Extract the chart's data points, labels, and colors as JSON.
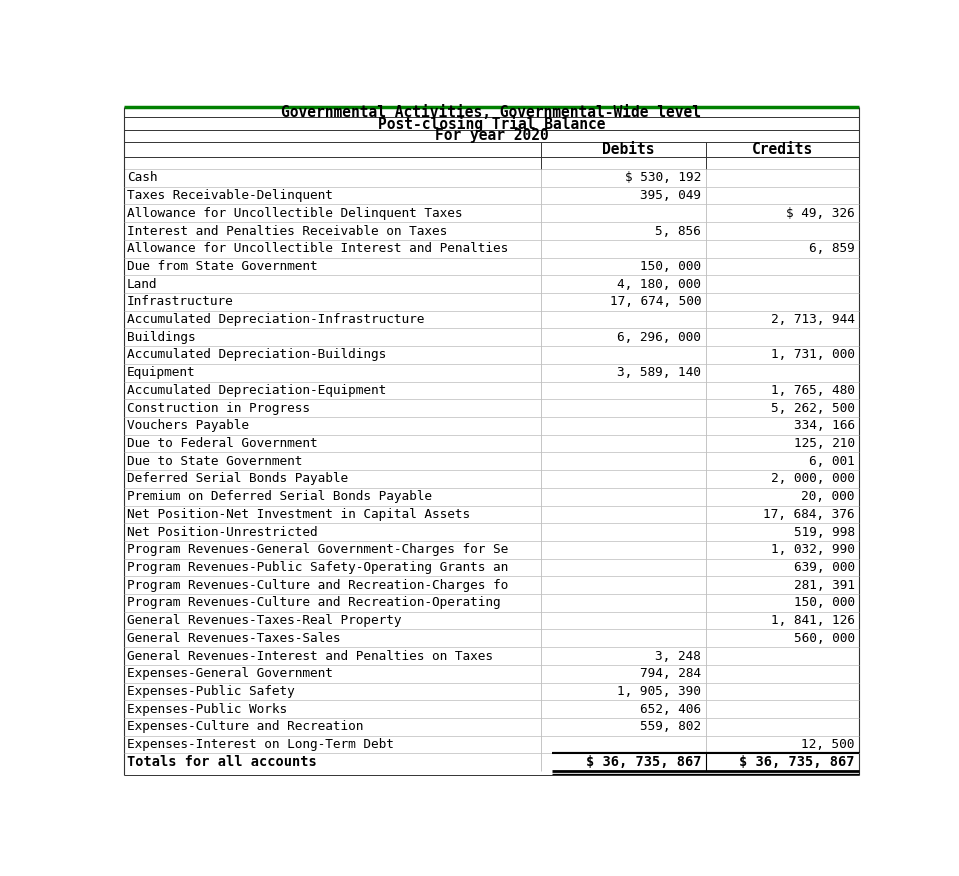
{
  "title1": "Governmental Activities, Governmental-Wide level",
  "title2": "Post-closing Trial Balance",
  "title3": "For year 2020",
  "rows": [
    {
      "account": "Cash",
      "debit": "$ 530, 192",
      "credit": ""
    },
    {
      "account": "Taxes Receivable-Delinquent",
      "debit": "395, 049",
      "credit": ""
    },
    {
      "account": "Allowance for Uncollectible Delinquent Taxes",
      "debit": "",
      "credit": "$ 49, 326"
    },
    {
      "account": "Interest and Penalties Receivable on Taxes",
      "debit": "5, 856",
      "credit": ""
    },
    {
      "account": "Allowance for Uncollectible Interest and Penalties",
      "debit": "",
      "credit": "6, 859"
    },
    {
      "account": "Due from State Government",
      "debit": "150, 000",
      "credit": ""
    },
    {
      "account": "Land",
      "debit": "4, 180, 000",
      "credit": ""
    },
    {
      "account": "Infrastructure",
      "debit": "17, 674, 500",
      "credit": ""
    },
    {
      "account": "Accumulated Depreciation-Infrastructure",
      "debit": "",
      "credit": "2, 713, 944"
    },
    {
      "account": "Buildings",
      "debit": "6, 296, 000",
      "credit": ""
    },
    {
      "account": "Accumulated Depreciation-Buildings",
      "debit": "",
      "credit": "1, 731, 000"
    },
    {
      "account": "Equipment",
      "debit": "3, 589, 140",
      "credit": ""
    },
    {
      "account": "Accumulated Depreciation-Equipment",
      "debit": "",
      "credit": "1, 765, 480"
    },
    {
      "account": "Construction in Progress",
      "debit": "",
      "credit": "5, 262, 500"
    },
    {
      "account": "Vouchers Payable",
      "debit": "",
      "credit": "334, 166"
    },
    {
      "account": "Due to Federal Government",
      "debit": "",
      "credit": "125, 210"
    },
    {
      "account": "Due to State Government",
      "debit": "",
      "credit": "6, 001"
    },
    {
      "account": "Deferred Serial Bonds Payable",
      "debit": "",
      "credit": "2, 000, 000"
    },
    {
      "account": "Premium on Deferred Serial Bonds Payable",
      "debit": "",
      "credit": "20, 000"
    },
    {
      "account": "Net Position-Net Investment in Capital Assets",
      "debit": "",
      "credit": "17, 684, 376"
    },
    {
      "account": "Net Position-Unrestricted",
      "debit": "",
      "credit": "519, 998"
    },
    {
      "account": "Program Revenues-General Government-Charges for Se",
      "debit": "",
      "credit": "1, 032, 990"
    },
    {
      "account": "Program Revenues-Public Safety-Operating Grants an",
      "debit": "",
      "credit": "639, 000"
    },
    {
      "account": "Program Revenues-Culture and Recreation-Charges fo",
      "debit": "",
      "credit": "281, 391"
    },
    {
      "account": "Program Revenues-Culture and Recreation-Operating",
      "debit": "",
      "credit": "150, 000"
    },
    {
      "account": "General Revenues-Taxes-Real Property",
      "debit": "",
      "credit": "1, 841, 126"
    },
    {
      "account": "General Revenues-Taxes-Sales",
      "debit": "",
      "credit": "560, 000"
    },
    {
      "account": "General Revenues-Interest and Penalties on Taxes",
      "debit": "3, 248",
      "credit": ""
    },
    {
      "account": "Expenses-General Government",
      "debit": "794, 284",
      "credit": ""
    },
    {
      "account": "Expenses-Public Safety",
      "debit": "1, 905, 390",
      "credit": ""
    },
    {
      "account": "Expenses-Public Works",
      "debit": "652, 406",
      "credit": ""
    },
    {
      "account": "Expenses-Culture and Recreation",
      "debit": "559, 802",
      "credit": ""
    },
    {
      "account": "Expenses-Interest on Long-Term Debt",
      "debit": "",
      "credit": "12, 500"
    }
  ],
  "total_row": {
    "account": "Totals for all accounts",
    "debit": "$ 36, 735, 867",
    "credit": "$ 36, 735, 867"
  },
  "bg_color": "#ffffff",
  "font_family": "monospace",
  "title_fontsize": 10.5,
  "header_fontsize": 10.5,
  "body_fontsize": 9.2,
  "total_fontsize": 9.8,
  "green_line_color": "#008000",
  "border_color": "#333333",
  "light_line_color": "#bbbbbb"
}
